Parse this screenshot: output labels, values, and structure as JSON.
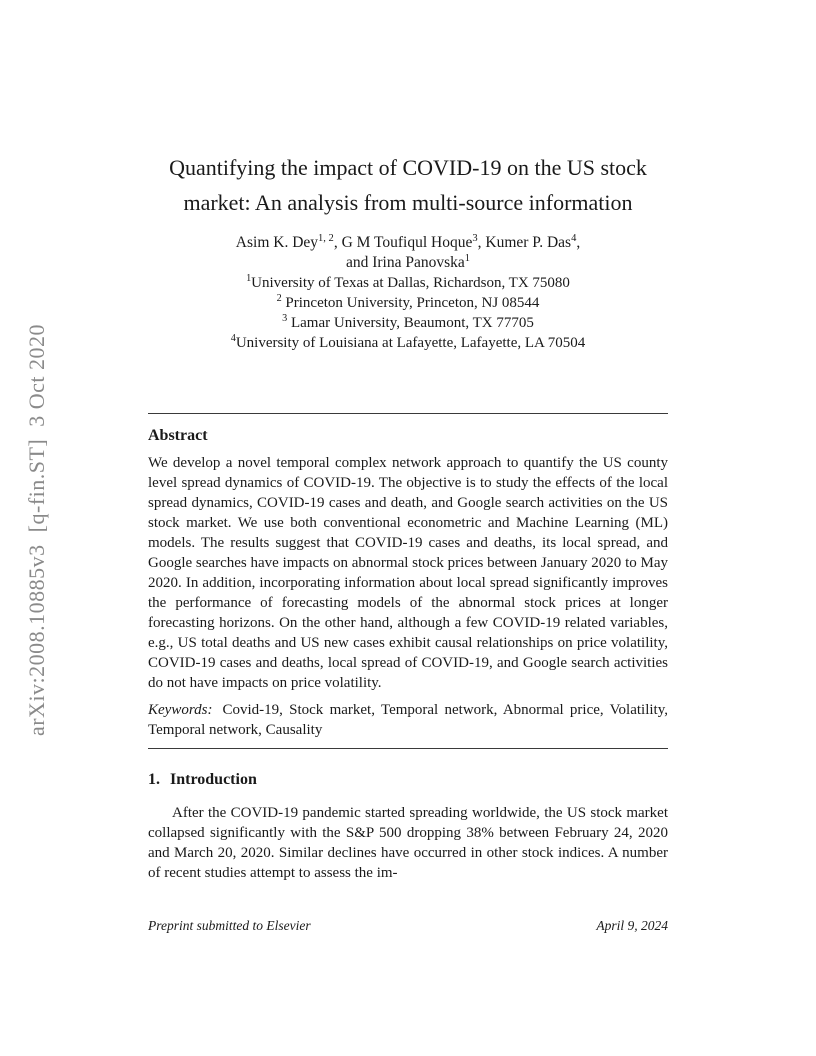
{
  "sidebar": {
    "arxiv_label": "arXiv:2008.10885v3  [q-fin.ST]  3 Oct 2020"
  },
  "header": {
    "title_lines": [
      "Quantifying the impact of COVID-19 on the US stock",
      "market: An analysis from multi-source information"
    ],
    "authors": {
      "line1": [
        {
          "text": "Asim K. Dey"
        },
        {
          "sup": "1, 2"
        },
        {
          "text": ", G M Toufiqul Hoque"
        },
        {
          "sup": "3"
        },
        {
          "text": ", Kumer P. Das"
        },
        {
          "sup": "4"
        },
        {
          "text": ","
        }
      ],
      "line2": [
        {
          "text": "and Irina Panovska"
        },
        {
          "sup": "1"
        }
      ]
    },
    "affiliations": [
      {
        "sup": "1",
        "text": "University of Texas at Dallas, Richardson, TX 75080"
      },
      {
        "sup": "2",
        "text": " Princeton University, Princeton, NJ 08544"
      },
      {
        "sup": "3",
        "text": " Lamar University, Beaumont, TX 77705"
      },
      {
        "sup": "4",
        "text": "University of Louisiana at Lafayette, Lafayette, LA 70504"
      }
    ]
  },
  "abstract": {
    "heading": "Abstract",
    "text": "We develop a novel temporal complex network approach to quantify the US county level spread dynamics of COVID-19. The objective is to study the effects of the local spread dynamics, COVID-19 cases and death, and Google search activities on the US stock market. We use both conventional econometric and Machine Learning (ML) models. The results suggest that COVID-19 cases and deaths, its local spread, and Google searches have impacts on abnormal stock prices between January 2020 to May 2020. In addition, incorporating information about local spread significantly improves the performance of forecasting models of the abnormal stock prices at longer forecasting horizons. On the other hand, although a few COVID-19 related variables, e.g., US total deaths and US new cases exhibit causal relationships on price volatility, COVID-19 cases and deaths, local spread of COVID-19, and Google search activities do not have impacts on price volatility.",
    "keywords_label": "Keywords:",
    "keywords_text": "Covid-19, Stock market, Temporal network, Abnormal price, Volatility, Temporal network, Causality"
  },
  "introduction": {
    "number": "1.",
    "heading": "Introduction",
    "paragraph": "After the COVID-19 pandemic started spreading worldwide, the US stock market collapsed significantly with the S&P 500 dropping 38% between February 24, 2020 and March 20, 2020. Similar declines have occurred in other stock indices. A number of recent studies attempt to assess the im-"
  },
  "footer": {
    "left": "Preprint submitted to Elsevier",
    "right": "April 9, 2024"
  }
}
